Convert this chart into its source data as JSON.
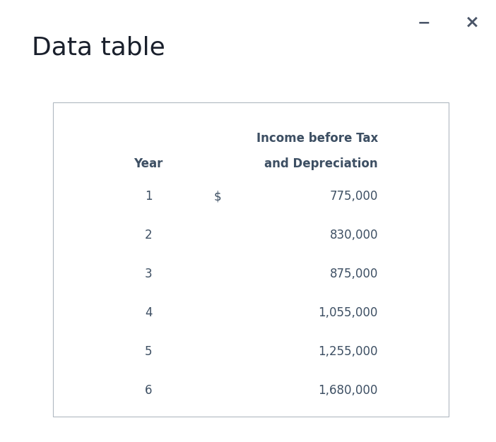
{
  "title": "Data table",
  "title_fontsize": 26,
  "title_color": "#1a202c",
  "background_color": "#ffffff",
  "table_border_color": "#b0b8c1",
  "text_color": "#3d4f63",
  "header_row1": "Income before Tax",
  "header_row2_col1": "Year",
  "header_row2_col2": "and Depreciation",
  "years": [
    1,
    2,
    3,
    4,
    5,
    6
  ],
  "dollar_sign_row": 0,
  "values": [
    "775,000",
    "830,000",
    "875,000",
    "1,055,000",
    "1,255,000",
    "1,680,000"
  ],
  "header_fontsize": 12,
  "data_fontsize": 12,
  "minimize_symbol": "−",
  "close_symbol": "×",
  "symbol_color": "#4a5568",
  "symbol_fontsize": 16,
  "fig_width": 7.02,
  "fig_height": 6.26,
  "dpi": 100
}
